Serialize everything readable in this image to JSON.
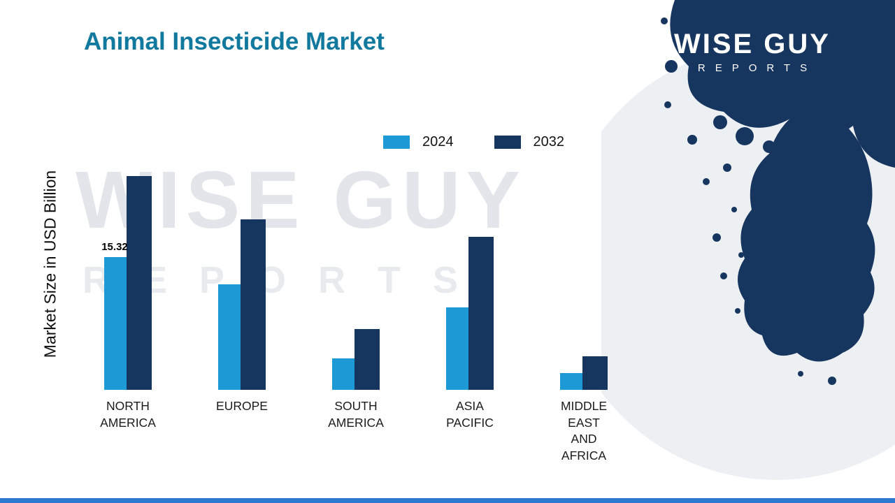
{
  "page": {
    "title": "Animal Insecticide Market",
    "title_color": "#12799e",
    "accent_bar_color": "#2e78d2",
    "background_color": "#ffffff"
  },
  "logo": {
    "line1": "WISE GUY",
    "line2": "REPORTS"
  },
  "watermark": {
    "line1": "WISE GUY",
    "line2": "REPORTS"
  },
  "chart_data": {
    "type": "bar",
    "title": "Animal Insecticide Market",
    "ylabel": "Market Size in USD Billion",
    "xlabel": "",
    "ylim": [
      0,
      26
    ],
    "grid": false,
    "legend_position": "top",
    "categories": [
      "NORTH AMERICA",
      "EUROPE",
      "SOUTH AMERICA",
      "ASIA PACIFIC",
      "MIDDLE EAST AND AFRICA"
    ],
    "series": [
      {
        "name": "2024",
        "color": "#1d9ad6",
        "values": [
          15.32,
          12.2,
          3.6,
          9.5,
          1.9
        ]
      },
      {
        "name": "2032",
        "color": "#17365f",
        "values": [
          24.7,
          19.7,
          7.0,
          17.7,
          3.9
        ]
      }
    ],
    "data_labels": {
      "series_index": 0,
      "values": [
        "15.32",
        null,
        null,
        null,
        null
      ]
    }
  },
  "decor": {
    "head_color": "#17365f",
    "circle_color": "#edf0f3"
  }
}
